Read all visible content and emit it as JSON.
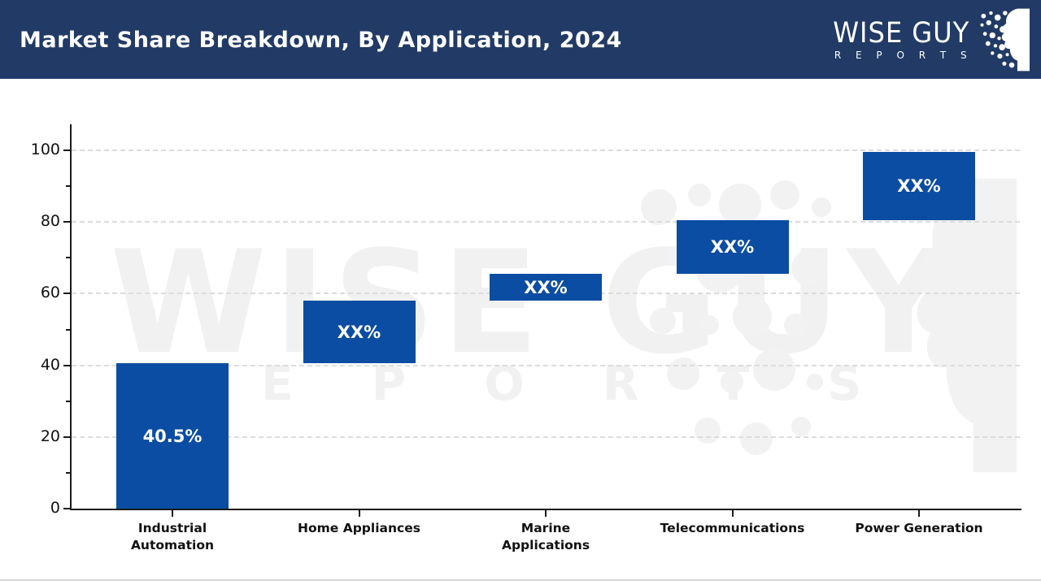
{
  "header": {
    "title": "Market Share Breakdown, By Application, 2024",
    "bg_color": "#213a66",
    "logo": {
      "wordmark": "WISE GUY",
      "subtext": "R E P O R T S"
    }
  },
  "watermark": {
    "wordmark": "WISE GUY",
    "subtext": "R E P O R T S"
  },
  "chart_data": {
    "type": "bar",
    "subtype": "waterfall",
    "title": "Market Share Breakdown, By Application, 2024",
    "categories": [
      "Industrial Automation",
      "Home Appliances",
      "Marine Applications",
      "Telecommunications",
      "Power Generation"
    ],
    "category_display": [
      [
        "Industrial",
        "Automation"
      ],
      [
        "Home Appliances"
      ],
      [
        "Marine",
        "Applications"
      ],
      [
        "Telecommunications"
      ],
      [
        "Power Generation"
      ]
    ],
    "segments": [
      {
        "category": "Industrial Automation",
        "start": 0,
        "end": 40.5,
        "label": "40.5%"
      },
      {
        "category": "Home Appliances",
        "start": 40.5,
        "end": 58,
        "label": "XX%"
      },
      {
        "category": "Marine Applications",
        "start": 58,
        "end": 65.5,
        "label": "XX%"
      },
      {
        "category": "Telecommunications",
        "start": 65.5,
        "end": 80.5,
        "label": "XX%"
      },
      {
        "category": "Power Generation",
        "start": 80.5,
        "end": 99.5,
        "label": "XX%"
      }
    ],
    "ylim": [
      0,
      100
    ],
    "yticks": [
      0,
      20,
      40,
      60,
      80,
      100
    ],
    "grid": "horizontal-dashed",
    "legend": "none",
    "bar_color": "#0b4da2",
    "bar_label_color": "#ffffff",
    "axis_color": "#1a1a1a",
    "gridline_color": "#dcdcdc"
  }
}
